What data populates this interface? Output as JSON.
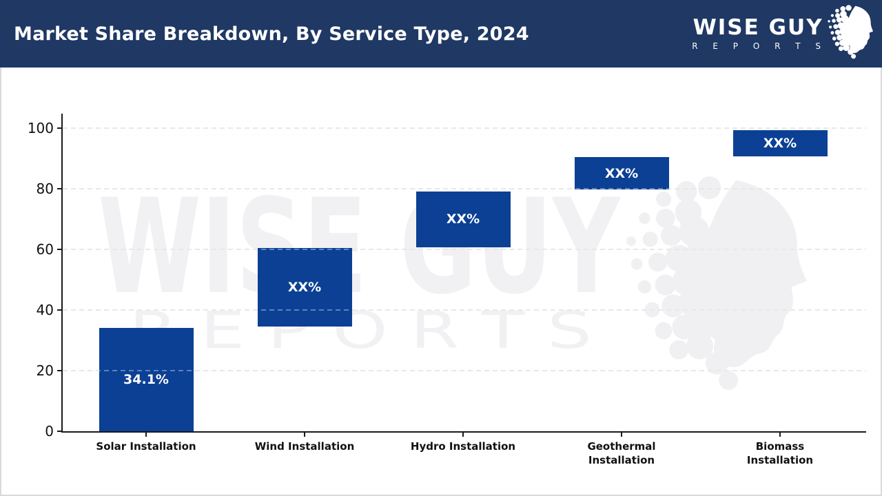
{
  "header": {
    "title": "Market Share Breakdown, By Service Type, 2024",
    "bg_color": "#1F3864",
    "logo": {
      "line1": "WISE GUY",
      "line2": "R E P O R T S"
    }
  },
  "watermark": {
    "line1": "WISE GUY",
    "line2": "R E P O R T S"
  },
  "chart_data": {
    "type": "bar",
    "subtype": "waterfall",
    "title": "Market Share Breakdown, By Service Type, 2024",
    "xlabel": "",
    "ylabel": "",
    "ylim": [
      0,
      100
    ],
    "yticks": [
      0,
      20,
      40,
      60,
      80,
      100
    ],
    "grid": "horizontal-dashed",
    "legend": "none",
    "bar_color": "#0B4094",
    "categories": [
      "Solar Installation",
      "Wind Installation",
      "Hydro Installation",
      "Geothermal\nInstallation",
      "Biomass\nInstallation"
    ],
    "segments": [
      {
        "category": "Solar Installation",
        "label": "34.1%",
        "start": 0,
        "end": 34.1
      },
      {
        "category": "Wind Installation",
        "label": "XX%",
        "start": 34.5,
        "end": 60.5
      },
      {
        "category": "Hydro Installation",
        "label": "XX%",
        "start": 60.7,
        "end": 79.1
      },
      {
        "category": "Geothermal Installation",
        "label": "XX%",
        "start": 79.8,
        "end": 90.4
      },
      {
        "category": "Biomass Installation",
        "label": "XX%",
        "start": 90.6,
        "end": 99.3
      }
    ]
  }
}
